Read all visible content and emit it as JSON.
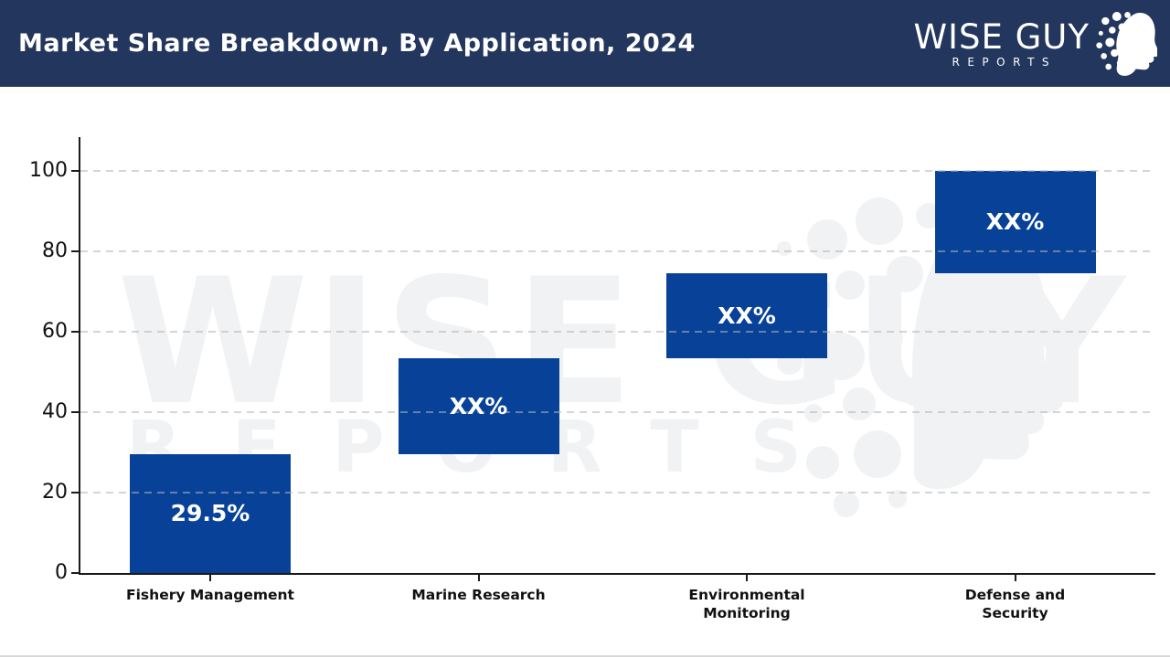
{
  "header": {
    "title": "Market Share Breakdown, By Application, 2024"
  },
  "logo": {
    "line1": "WISE GUY",
    "line2": "REPORTS"
  },
  "watermark": {
    "line1": "WISE GUY",
    "line2": "REPORTS"
  },
  "colors": {
    "header_navy": "#23365e",
    "bar_blue": "#084298",
    "grid_gray": "#d9d9d9",
    "watermark_gray": "#f1f2f4"
  },
  "chart_data": {
    "type": "bar",
    "subtype": "waterfall",
    "title": "Market Share Breakdown, By Application, 2024",
    "categories": [
      "Fishery Management",
      "Marine Research",
      "Environmental\nMonitoring",
      "Defense and\nSecurity"
    ],
    "segments": [
      {
        "category": "Fishery Management",
        "start": 0,
        "end": 29.5,
        "label": "29.5%"
      },
      {
        "category": "Marine Research",
        "start": 29.5,
        "end": 53.3,
        "label": "XX%"
      },
      {
        "category": "Environmental Monitoring",
        "start": 53.3,
        "end": 74.5,
        "label": "XX%"
      },
      {
        "category": "Defense and Security",
        "start": 74.5,
        "end": 100,
        "label": "XX%"
      }
    ],
    "xlabel": "",
    "ylabel": "",
    "ylim": [
      0,
      100
    ],
    "yticks": [
      0,
      20,
      40,
      60,
      80,
      100
    ],
    "grid": "horizontal-dashed",
    "grid_above_bars": true,
    "legend": "none",
    "bar_color": "#084298",
    "bar_label_color": "#ffffff"
  }
}
